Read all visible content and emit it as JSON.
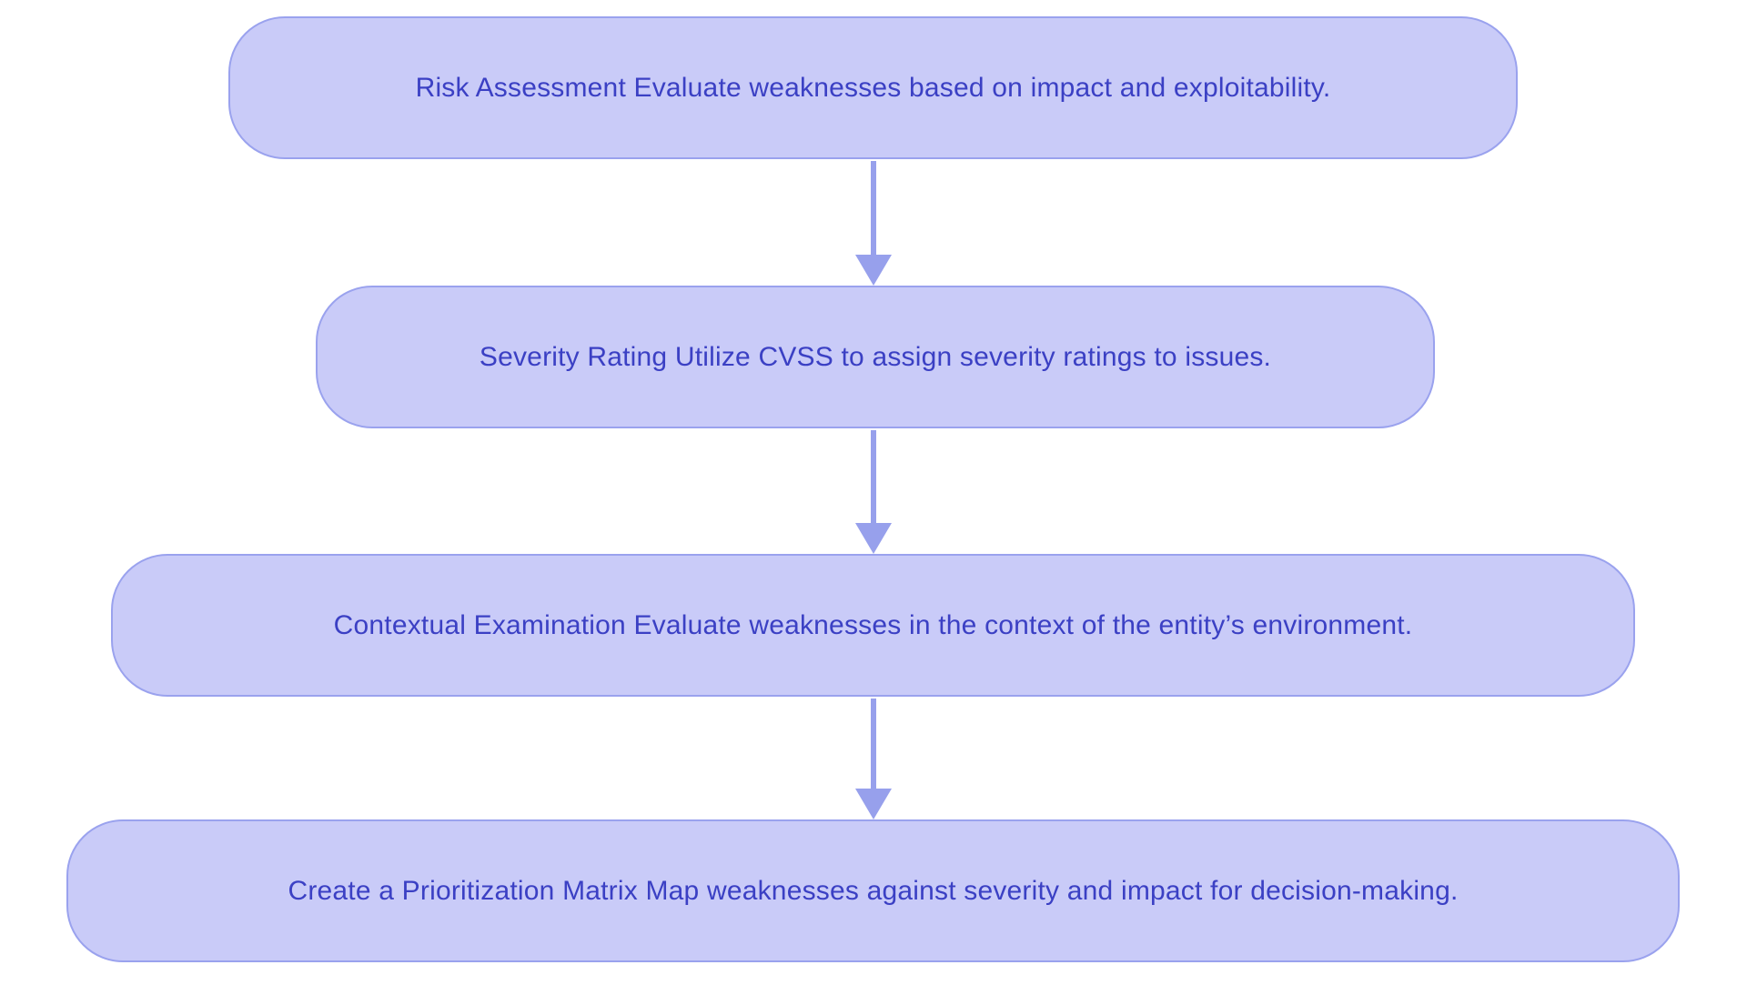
{
  "diagram": {
    "type": "flowchart",
    "direction": "top-down",
    "steps": [
      {
        "id": 1,
        "name": "risk-assessment",
        "label": "Risk Assessment Evaluate weaknesses based on impact and exploitability."
      },
      {
        "id": 2,
        "name": "severity-rating",
        "label": "Severity Rating Utilize CVSS to assign severity ratings to issues."
      },
      {
        "id": 3,
        "name": "contextual-examination",
        "label": "Contextual Examination Evaluate weaknesses in the context of the entity’s environment."
      },
      {
        "id": 4,
        "name": "prioritization-matrix",
        "label": "Create a Prioritization Matrix Map weaknesses against severity and impact for decision-making."
      }
    ],
    "connections": [
      {
        "from": 1,
        "to": 2
      },
      {
        "from": 2,
        "to": 3
      },
      {
        "from": 3,
        "to": 4
      }
    ],
    "colors": {
      "node_fill": "#c9cbf8",
      "node_border": "#9aa2ee",
      "node_text": "#3b40c4",
      "arrow": "#97a0ec",
      "background": "#ffffff"
    }
  }
}
